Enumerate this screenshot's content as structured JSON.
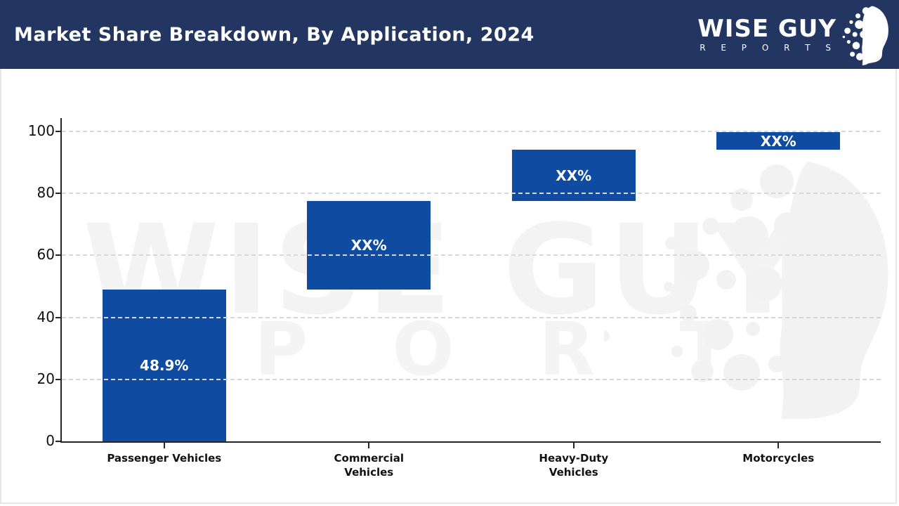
{
  "header": {
    "title": "Market Share Breakdown, By Application, 2024",
    "bg_color": "#223661",
    "logo": {
      "line1": "WISE GUY",
      "line2": "R E P O R T S"
    }
  },
  "watermark": {
    "line1": "WISE GUY",
    "line2": "P O R T S"
  },
  "chart_data": {
    "type": "bar",
    "subtype": "waterfall",
    "title": "Market Share Breakdown, By Application, 2024",
    "categories": [
      "Passenger Vehicles",
      "Commercial\nVehicles",
      "Heavy-Duty\nVehicles",
      "Motorcycles"
    ],
    "segments": [
      {
        "category": "Passenger Vehicles",
        "start": 0,
        "end": 48.9,
        "label": "48.9%"
      },
      {
        "category": "Commercial Vehicles",
        "start": 48.9,
        "end": 77.5,
        "label": "XX%"
      },
      {
        "category": "Heavy-Duty Vehicles",
        "start": 77.5,
        "end": 94.0,
        "label": "XX%"
      },
      {
        "category": "Motorcycles",
        "start": 94.0,
        "end": 99.7,
        "label": "XX%"
      }
    ],
    "yticks": [
      0,
      20,
      40,
      60,
      80,
      100
    ],
    "ylim": [
      0,
      104
    ],
    "xlabel": "",
    "ylabel": "",
    "grid": true,
    "legend": false,
    "bar_color": "#0e4ba1",
    "grid_color": "#d8d8d8",
    "axis_color": "#262626"
  }
}
